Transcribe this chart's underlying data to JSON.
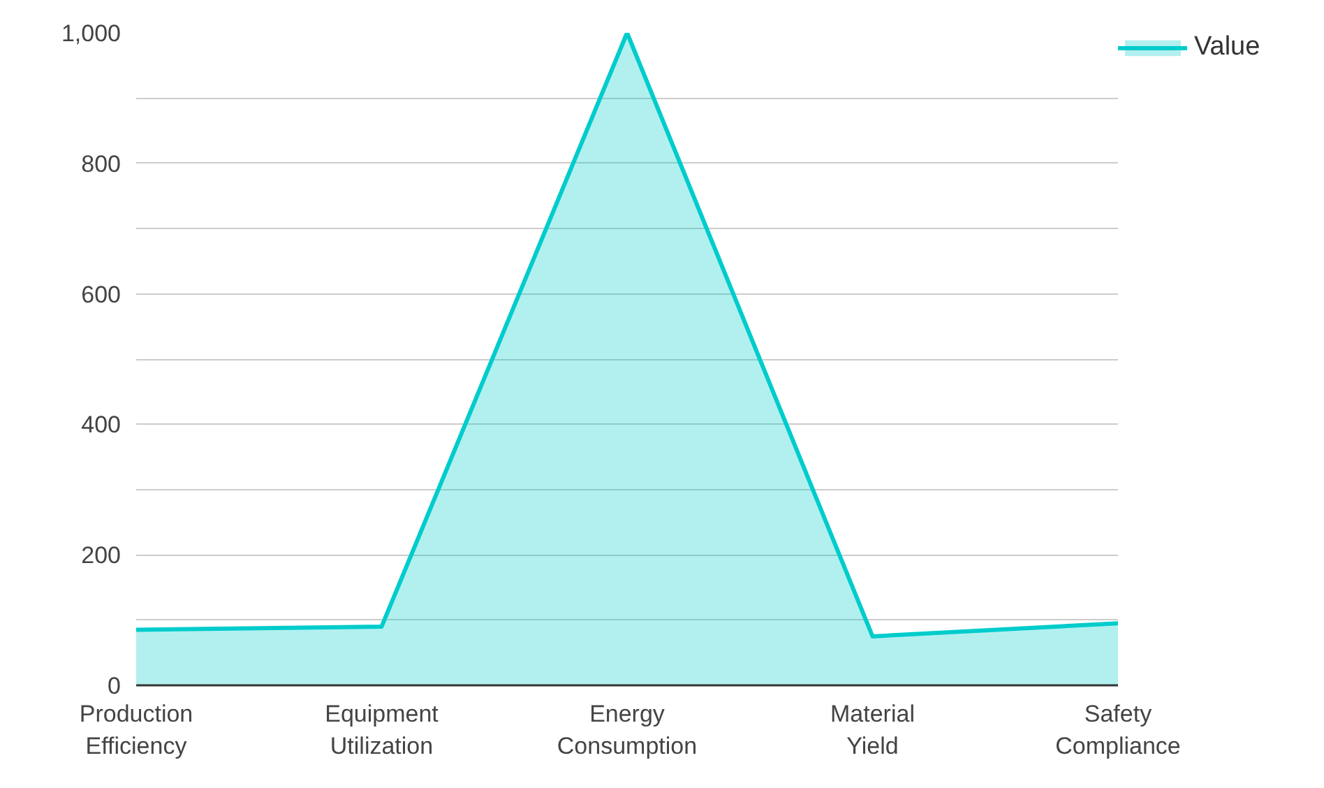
{
  "chart_data": {
    "type": "area",
    "categories": [
      "Production Efficiency",
      "Equipment Utilization",
      "Energy Consumption",
      "Material Yield",
      "Safety Compliance"
    ],
    "series": [
      {
        "name": "Value",
        "color": "#00cccc",
        "values": [
          85,
          90,
          1000,
          75,
          95
        ]
      }
    ],
    "ylim": [
      0,
      1000
    ],
    "yticks": [
      0,
      {
        "value": 100,
        "label": null
      },
      200,
      {
        "value": 300,
        "label": null
      },
      400,
      {
        "value": 500,
        "label": null
      },
      600,
      {
        "value": 700,
        "label": null
      },
      800,
      {
        "value": 900,
        "label": null
      },
      {
        "value": 1000,
        "label": "1,000"
      }
    ],
    "grid": "y",
    "legend": "top right"
  }
}
